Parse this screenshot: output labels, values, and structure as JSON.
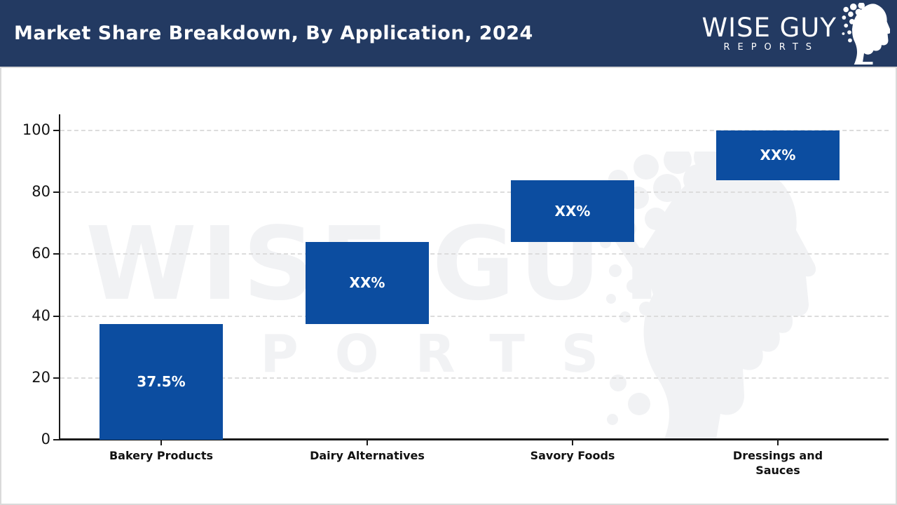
{
  "header": {
    "title": "Market Share Breakdown, By Application, 2024",
    "bg_color": "#233a62",
    "logo": {
      "line1": "WISE GUY",
      "line2": "REPORTS"
    }
  },
  "watermark": {
    "line1": "WISE GUY",
    "line2": "REPORTS"
  },
  "chart_data": {
    "type": "bar",
    "subtype": "waterfall-floating-bars",
    "title": "Market Share Breakdown, By Application, 2024",
    "categories": [
      "Bakery Products",
      "Dairy Alternatives",
      "Savory Foods",
      "Dressings and Sauces"
    ],
    "category_label_lines": [
      [
        "Bakery Products"
      ],
      [
        "Dairy Alternatives"
      ],
      [
        "Savory Foods"
      ],
      [
        "Dressings and",
        "Sauces"
      ]
    ],
    "segments": [
      {
        "category": "Bakery Products",
        "start": 0,
        "end": 37.5,
        "label": "37.5%"
      },
      {
        "category": "Dairy Alternatives",
        "start": 37.5,
        "end": 64,
        "label": "XX%"
      },
      {
        "category": "Savory Foods",
        "start": 64,
        "end": 84,
        "label": "XX%"
      },
      {
        "category": "Dressings and Sauces",
        "start": 84,
        "end": 100,
        "label": "XX%"
      }
    ],
    "ylim": [
      0,
      100
    ],
    "yticks": [
      0,
      20,
      40,
      60,
      80,
      100
    ],
    "xlabel": "",
    "ylabel": "",
    "legend": "none",
    "grid": "horizontal-dashed",
    "bar_color": "#0c4da0",
    "bar_label_color": "#ffffff",
    "axis_color": "#1a1a1a",
    "grid_color": "#dcdcdc"
  }
}
